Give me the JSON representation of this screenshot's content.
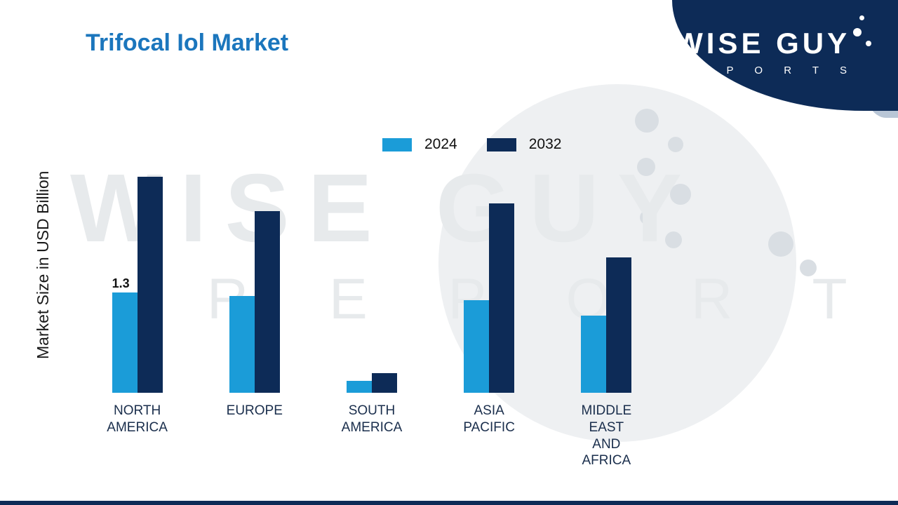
{
  "title": "Trifocal Iol Market",
  "logo": {
    "name": "WISE GUY",
    "sub": "R E P O R T S"
  },
  "watermark": {
    "line1": "WISE GUY",
    "line2": "R E P O R T S"
  },
  "ylabel": "Market Size in USD Billion",
  "legend": {
    "items": [
      {
        "label": "2024",
        "color": "#1b9cd8"
      },
      {
        "label": "2032",
        "color": "#0d2b57"
      }
    ]
  },
  "colors": {
    "series_2024": "#1b9cd8",
    "series_2032": "#0d2b57",
    "title_blue": "#1b76bd",
    "label_navy": "#1a2e4c"
  },
  "chart_data": {
    "type": "bar",
    "title": "Trifocal Iol Market",
    "xlabel": "",
    "ylabel": "Market Size in USD Billion",
    "ylim": [
      0,
      3
    ],
    "grid": false,
    "legend_position": "top",
    "categories": [
      "NORTH AMERICA",
      "EUROPE",
      "SOUTH AMERICA",
      "ASIA PACIFIC",
      "MIDDLE EAST AND AFRICA"
    ],
    "series": [
      {
        "name": "2024",
        "color": "#1b9cd8",
        "values": [
          1.3,
          1.25,
          0.15,
          1.2,
          1.0
        ]
      },
      {
        "name": "2032",
        "color": "#0d2b57",
        "values": [
          2.8,
          2.35,
          0.25,
          2.45,
          1.75
        ]
      }
    ],
    "annotations": [
      {
        "category": "NORTH AMERICA",
        "series": "2024",
        "text": "1.3"
      }
    ]
  }
}
